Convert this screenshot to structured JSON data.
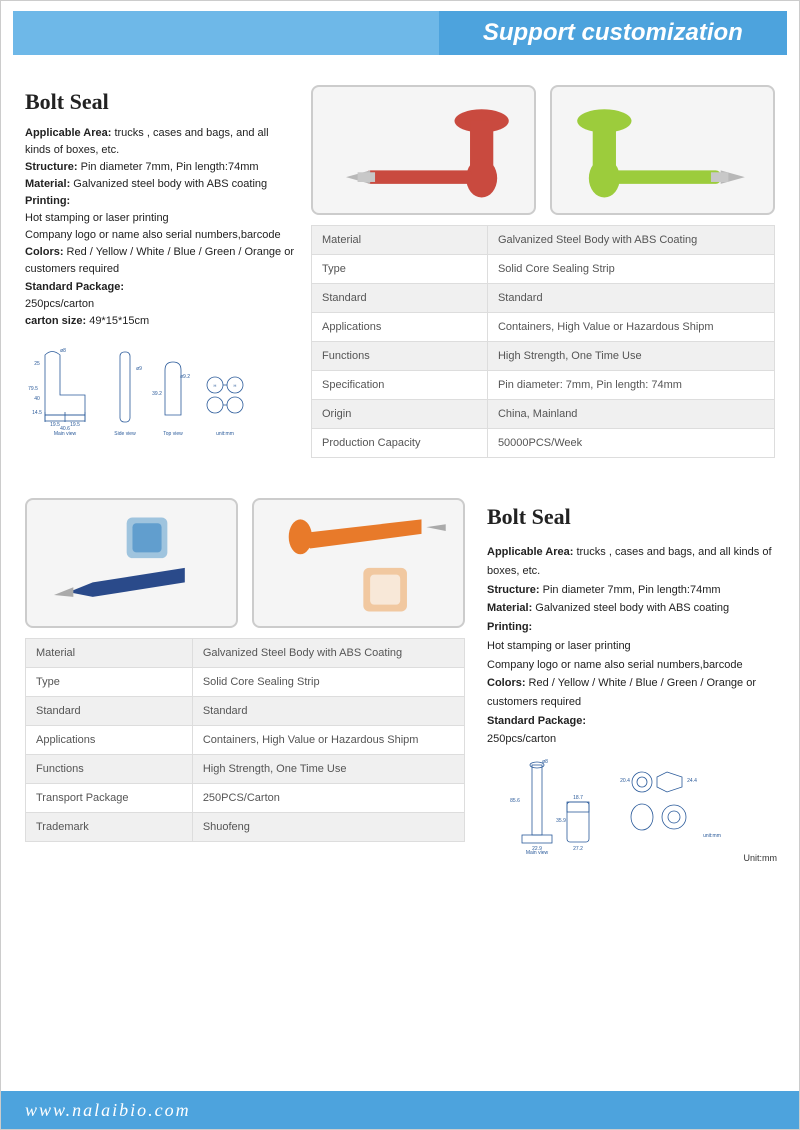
{
  "header": {
    "title": "Support customization"
  },
  "product1": {
    "title": "Bolt Seal",
    "specs": [
      {
        "label": "Applicable Area:",
        "value": " trucks , cases and bags, and all kinds of boxes, etc."
      },
      {
        "label": "Structure:",
        "value": "  Pin diameter 7mm, Pin length:74mm"
      },
      {
        "label": "Material:",
        "value": "  Galvanized steel body with ABS coating"
      },
      {
        "label": "Printing:",
        "value": ""
      },
      {
        "label": "",
        "value": "Hot stamping or laser printing"
      },
      {
        "label": "",
        "value": "Company logo or name also serial numbers,barcode"
      },
      {
        "label": "Colors:",
        "value": " Red / Yellow / White / Blue / Green / Orange or customers required"
      },
      {
        "label": "Standard Package:",
        "value": ""
      },
      {
        "label": "",
        "value": "250pcs/carton"
      },
      {
        "label": "carton size:",
        "value": " 49*15*15cm"
      }
    ],
    "image_colors": {
      "img1": "#c94a3f",
      "img2": "#9ccc3c"
    },
    "table": [
      [
        "Material",
        "Galvanized Steel Body with ABS Coating"
      ],
      [
        "Type",
        "Solid Core Sealing Strip"
      ],
      [
        "Standard",
        "Standard"
      ],
      [
        "Applications",
        "Containers, High Value or Hazardous Shipm"
      ],
      [
        "Functions",
        "High Strength, One Time Use"
      ],
      [
        "Specification",
        "Pin diameter: 7mm, Pin length: 74mm"
      ],
      [
        "Origin",
        "China, Mainland"
      ],
      [
        "Production Capacity",
        "50000PCS/Week"
      ]
    ],
    "diagram": {
      "labels": [
        "Main view",
        "Side view",
        "Top view",
        "unit:mm"
      ],
      "dims": [
        "25",
        "79.5",
        "40",
        "14.5",
        "40.6",
        "19.5",
        "19.5",
        "ø8",
        "ø9",
        "ø9.2",
        "39.2",
        "H",
        "H"
      ]
    }
  },
  "product2": {
    "title": "Bolt Seal",
    "specs": [
      {
        "label": "Applicable Area:",
        "value": " trucks , cases and bags, and all kinds of  boxes, etc."
      },
      {
        "label": "Structure:",
        "value": "  Pin diameter 7mm, Pin length:74mm"
      },
      {
        "label": "Material:",
        "value": "  Galvanized steel body with ABS coating"
      },
      {
        "label": "Printing:",
        "value": ""
      },
      {
        "label": "",
        "value": "Hot stamping or laser printing"
      },
      {
        "label": "",
        "value": "Company logo or name also serial numbers,barcode"
      },
      {
        "label": "Colors:",
        "value": " Red / Yellow / White / Blue / Green / Orange or customers required"
      },
      {
        "label": "Standard Package:",
        "value": ""
      },
      {
        "label": "",
        "value": "250pcs/carton"
      }
    ],
    "image_colors": {
      "img1a": "#2a4a8a",
      "img1b": "#5a9acc",
      "img2a": "#e87a2a",
      "img2b": "#f0a060"
    },
    "table": [
      [
        "Material",
        "Galvanized Steel Body with ABS Coating"
      ],
      [
        "Type",
        "Solid Core Sealing Strip"
      ],
      [
        "Standard",
        "Standard"
      ],
      [
        "Applications",
        "Containers, High Value or Hazardous Shipm"
      ],
      [
        "Functions",
        "High Strength, One Time Use"
      ],
      [
        "Transport Package",
        "250PCS/Carton"
      ],
      [
        "Trademark",
        "Shuofeng"
      ]
    ],
    "diagram": {
      "labels": [
        "Main view",
        "unit:mm",
        "Unit:mm"
      ],
      "dims": [
        "85.6",
        "ø8",
        "22.9",
        "18.7",
        "27.2",
        "35.9",
        "20.4",
        "24.4"
      ]
    }
  },
  "footer": {
    "url": "www.nalaibio.com"
  }
}
